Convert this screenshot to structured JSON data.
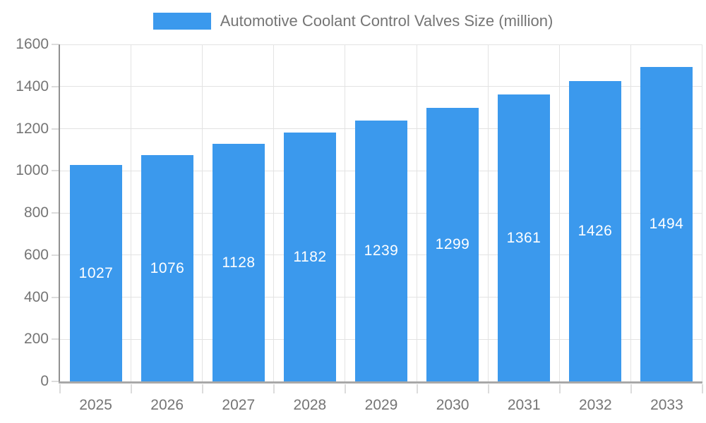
{
  "chart_data": {
    "type": "bar",
    "title": "Automotive Coolant Control Valves Size (million)",
    "categories": [
      "2025",
      "2026",
      "2027",
      "2028",
      "2029",
      "2030",
      "2031",
      "2032",
      "2033"
    ],
    "values": [
      1027,
      1076,
      1128,
      1182,
      1239,
      1299,
      1361,
      1426,
      1494
    ],
    "xlabel": "",
    "ylabel": "",
    "ylim": [
      0,
      1600
    ],
    "yticks": [
      0,
      200,
      400,
      600,
      800,
      1000,
      1200,
      1400,
      1600
    ],
    "grid": true,
    "legend_position": "top-center",
    "bar_color": "#3b99ed",
    "bar_label_color": "#ffffff",
    "text_color": "#757575",
    "grid_color": "#e3e3e3",
    "axis_color": "#919191"
  }
}
